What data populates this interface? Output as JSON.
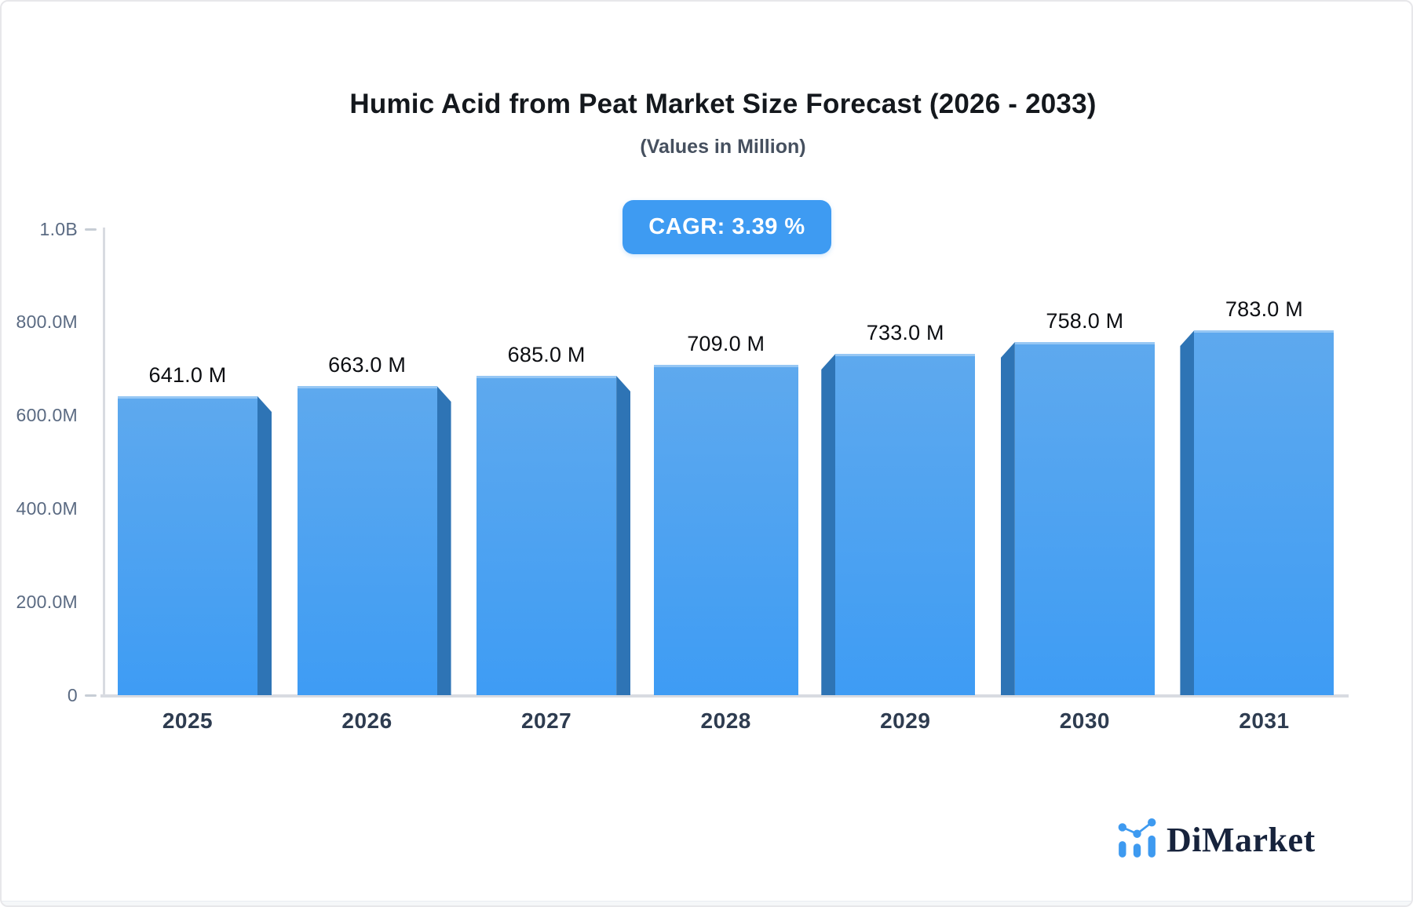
{
  "title": "Humic Acid from Peat Market Size Forecast (2026 - 2033)",
  "subtitle": "(Values in Million)",
  "cagr_badge": {
    "label": "CAGR: 3.39 %",
    "cagr_percent": 3.39
  },
  "brand": {
    "name": "DiMarket",
    "icon": "mini-bar-chart-logo"
  },
  "colors": {
    "bar_top": "#5EA9EE",
    "bar_bottom": "#3E9CF4",
    "bar_side": "#2E74B5",
    "badge_bg": "#3E9BF2",
    "axis_line": "#D8DBE1",
    "title_text": "#14181D",
    "subtitle_text": "#46505F",
    "tick_text": "#5A6A82",
    "year_text": "#2E3C50",
    "value_text": "#0C0E12",
    "brand_text": "#17233C",
    "brand_blue": "#3E9AF0"
  },
  "chart_data": {
    "type": "bar",
    "title": "Humic Acid from Peat Market Size Forecast (2026 - 2033)",
    "subtitle": "(Values in Million)",
    "categories": [
      "2025",
      "2026",
      "2027",
      "2028",
      "2029",
      "2030",
      "2031"
    ],
    "values": [
      641.0,
      663.0,
      685.0,
      709.0,
      733.0,
      758.0,
      783.0
    ],
    "value_labels": [
      "641.0 M",
      "663.0 M",
      "685.0 M",
      "709.0 M",
      "733.0 M",
      "758.0 M",
      "783.0 M"
    ],
    "unit": "Million",
    "cagr_percent": 3.39,
    "xlabel": "",
    "ylabel": "",
    "ylim": [
      0,
      1000
    ],
    "y_ticks": [
      {
        "label": "1.0B",
        "value": 1000,
        "dash": true
      },
      {
        "label": "800.0M",
        "value": 800,
        "dash": false
      },
      {
        "label": "600.0M",
        "value": 600,
        "dash": false
      },
      {
        "label": "400.0M",
        "value": 400,
        "dash": false
      },
      {
        "label": "200.0M",
        "value": 200,
        "dash": false
      },
      {
        "label": "0",
        "value": 0,
        "dash": true
      }
    ],
    "grid": false,
    "legend": false,
    "bar_style": "3d-perspective-center-vanishing"
  }
}
